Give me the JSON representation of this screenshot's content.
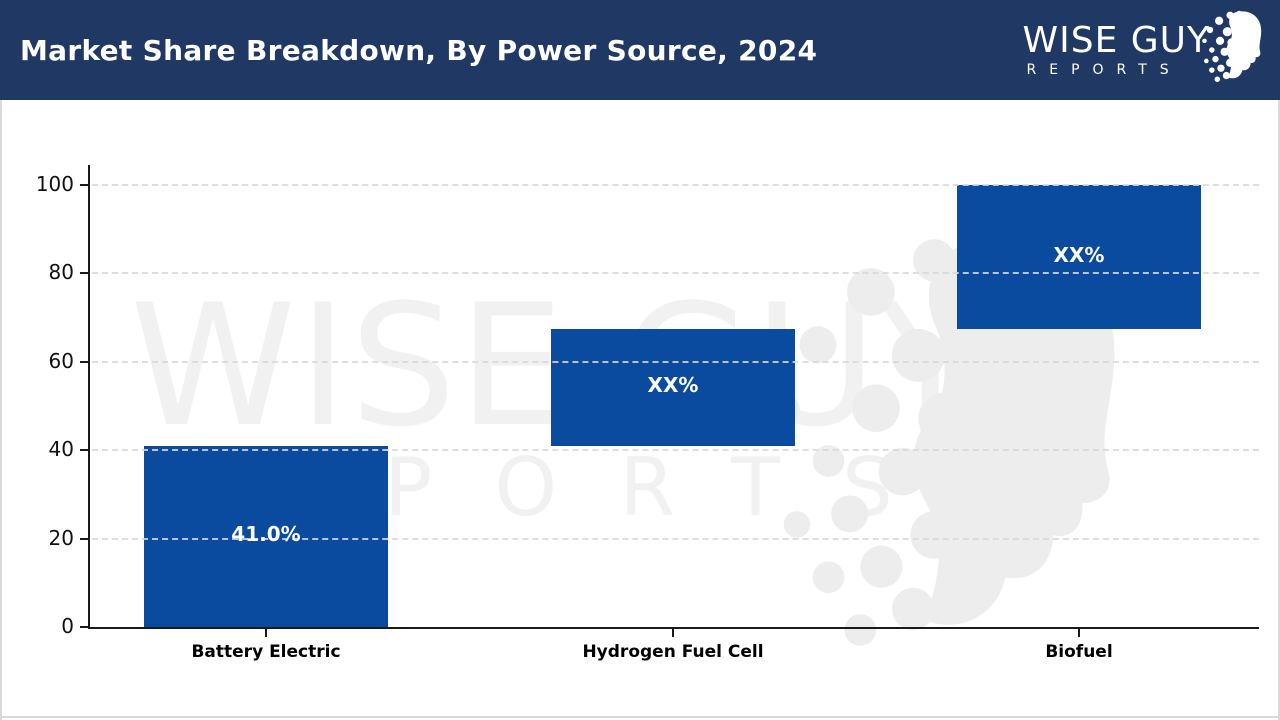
{
  "header": {
    "logo": {
      "wordmark": "WISE GUY",
      "subtitle": "REPORTS"
    }
  },
  "watermark": {
    "line1": "WISE GUY",
    "line2": "REPORTS"
  },
  "colors": {
    "header_bg": "#1f3864",
    "bar": "#0b4b9f",
    "grid": "#d9d9d9",
    "axis": "#1a1a1a",
    "bar_label_text": "#ffffff",
    "tick_label_text": "#111111",
    "category_label_text": "#000000",
    "title_text": "#ffffff",
    "watermark_text": "#f1f1f1",
    "watermark_face": "#ededed"
  },
  "chart_data": {
    "type": "bar",
    "variant": "waterfall",
    "title": "Market Share Breakdown, By Power Source, 2024",
    "categories": [
      "Battery Electric",
      "Hydrogen Fuel Cell",
      "Biofuel"
    ],
    "segments": [
      {
        "category": "Battery Electric",
        "start": 0,
        "end": 41,
        "label": "41.0%"
      },
      {
        "category": "Hydrogen Fuel Cell",
        "start": 41,
        "end": 67.5,
        "label": "XX%"
      },
      {
        "category": "Biofuel",
        "start": 67.5,
        "end": 100,
        "label": "XX%"
      }
    ],
    "xlabel": "",
    "ylabel": "",
    "ylim": [
      0,
      105
    ],
    "yticks": [
      0,
      20,
      40,
      60,
      80,
      100
    ],
    "grid": {
      "axis": "y",
      "style": "dashed"
    },
    "legend": null,
    "bar_color": "#0b4b9f"
  }
}
